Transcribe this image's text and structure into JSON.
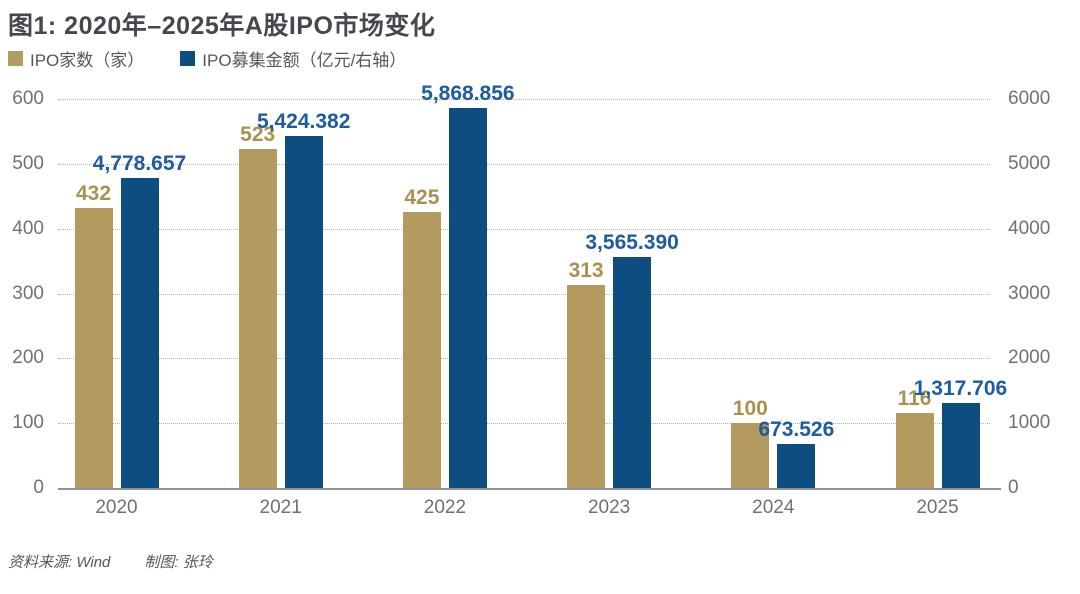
{
  "title": "图1: 2020年–2025年A股IPO市场变化",
  "legend": [
    {
      "label": "IPO家数（家）",
      "color": "#b39a5e"
    },
    {
      "label": "IPO募集金额（亿元/右轴）",
      "color": "#0d4d80"
    }
  ],
  "footer": {
    "source": "资料来源: Wind",
    "credit": "制图: 张玲"
  },
  "colors": {
    "count_bar": "#b39a5e",
    "amount_bar": "#0d4d80",
    "count_label": "#aa9150",
    "amount_label": "#1e5ca0",
    "axis_text": "#6e7177",
    "grid_line": "#b5b5b5",
    "title_text": "#46474d"
  },
  "chart_data": {
    "type": "bar",
    "title": "图1: 2020年–2025年A股IPO市场变化",
    "categories": [
      "2020",
      "2021",
      "2022",
      "2023",
      "2024",
      "2025"
    ],
    "series": [
      {
        "name": "IPO家数（家）",
        "axis": "left",
        "color": "#b39a5e",
        "label_color": "#aa9150",
        "values": [
          432,
          523,
          425,
          313,
          100,
          116
        ],
        "labels": [
          "432",
          "523",
          "425",
          "313",
          "100",
          "116"
        ]
      },
      {
        "name": "IPO募集金额（亿元/右轴）",
        "axis": "right",
        "color": "#0d4d80",
        "label_color": "#1e5ca0",
        "values": [
          4778.657,
          5424.382,
          5868.856,
          3565.39,
          673.526,
          1317.706
        ],
        "labels": [
          "4,778.657",
          "5,424.382",
          "5,868.856",
          "3,565.390",
          "673.526",
          "1,317.706"
        ]
      }
    ],
    "left_axis": {
      "min": 0,
      "max": 600,
      "step": 100,
      "ticks": [
        "0",
        "100",
        "200",
        "300",
        "400",
        "500",
        "600"
      ]
    },
    "right_axis": {
      "min": 0,
      "max": 6000,
      "step": 1000,
      "ticks": [
        "0",
        "1000",
        "2000",
        "3000",
        "4000",
        "5000",
        "6000"
      ]
    },
    "grid": "horizontal-dotted",
    "legend_position": "top-left"
  }
}
